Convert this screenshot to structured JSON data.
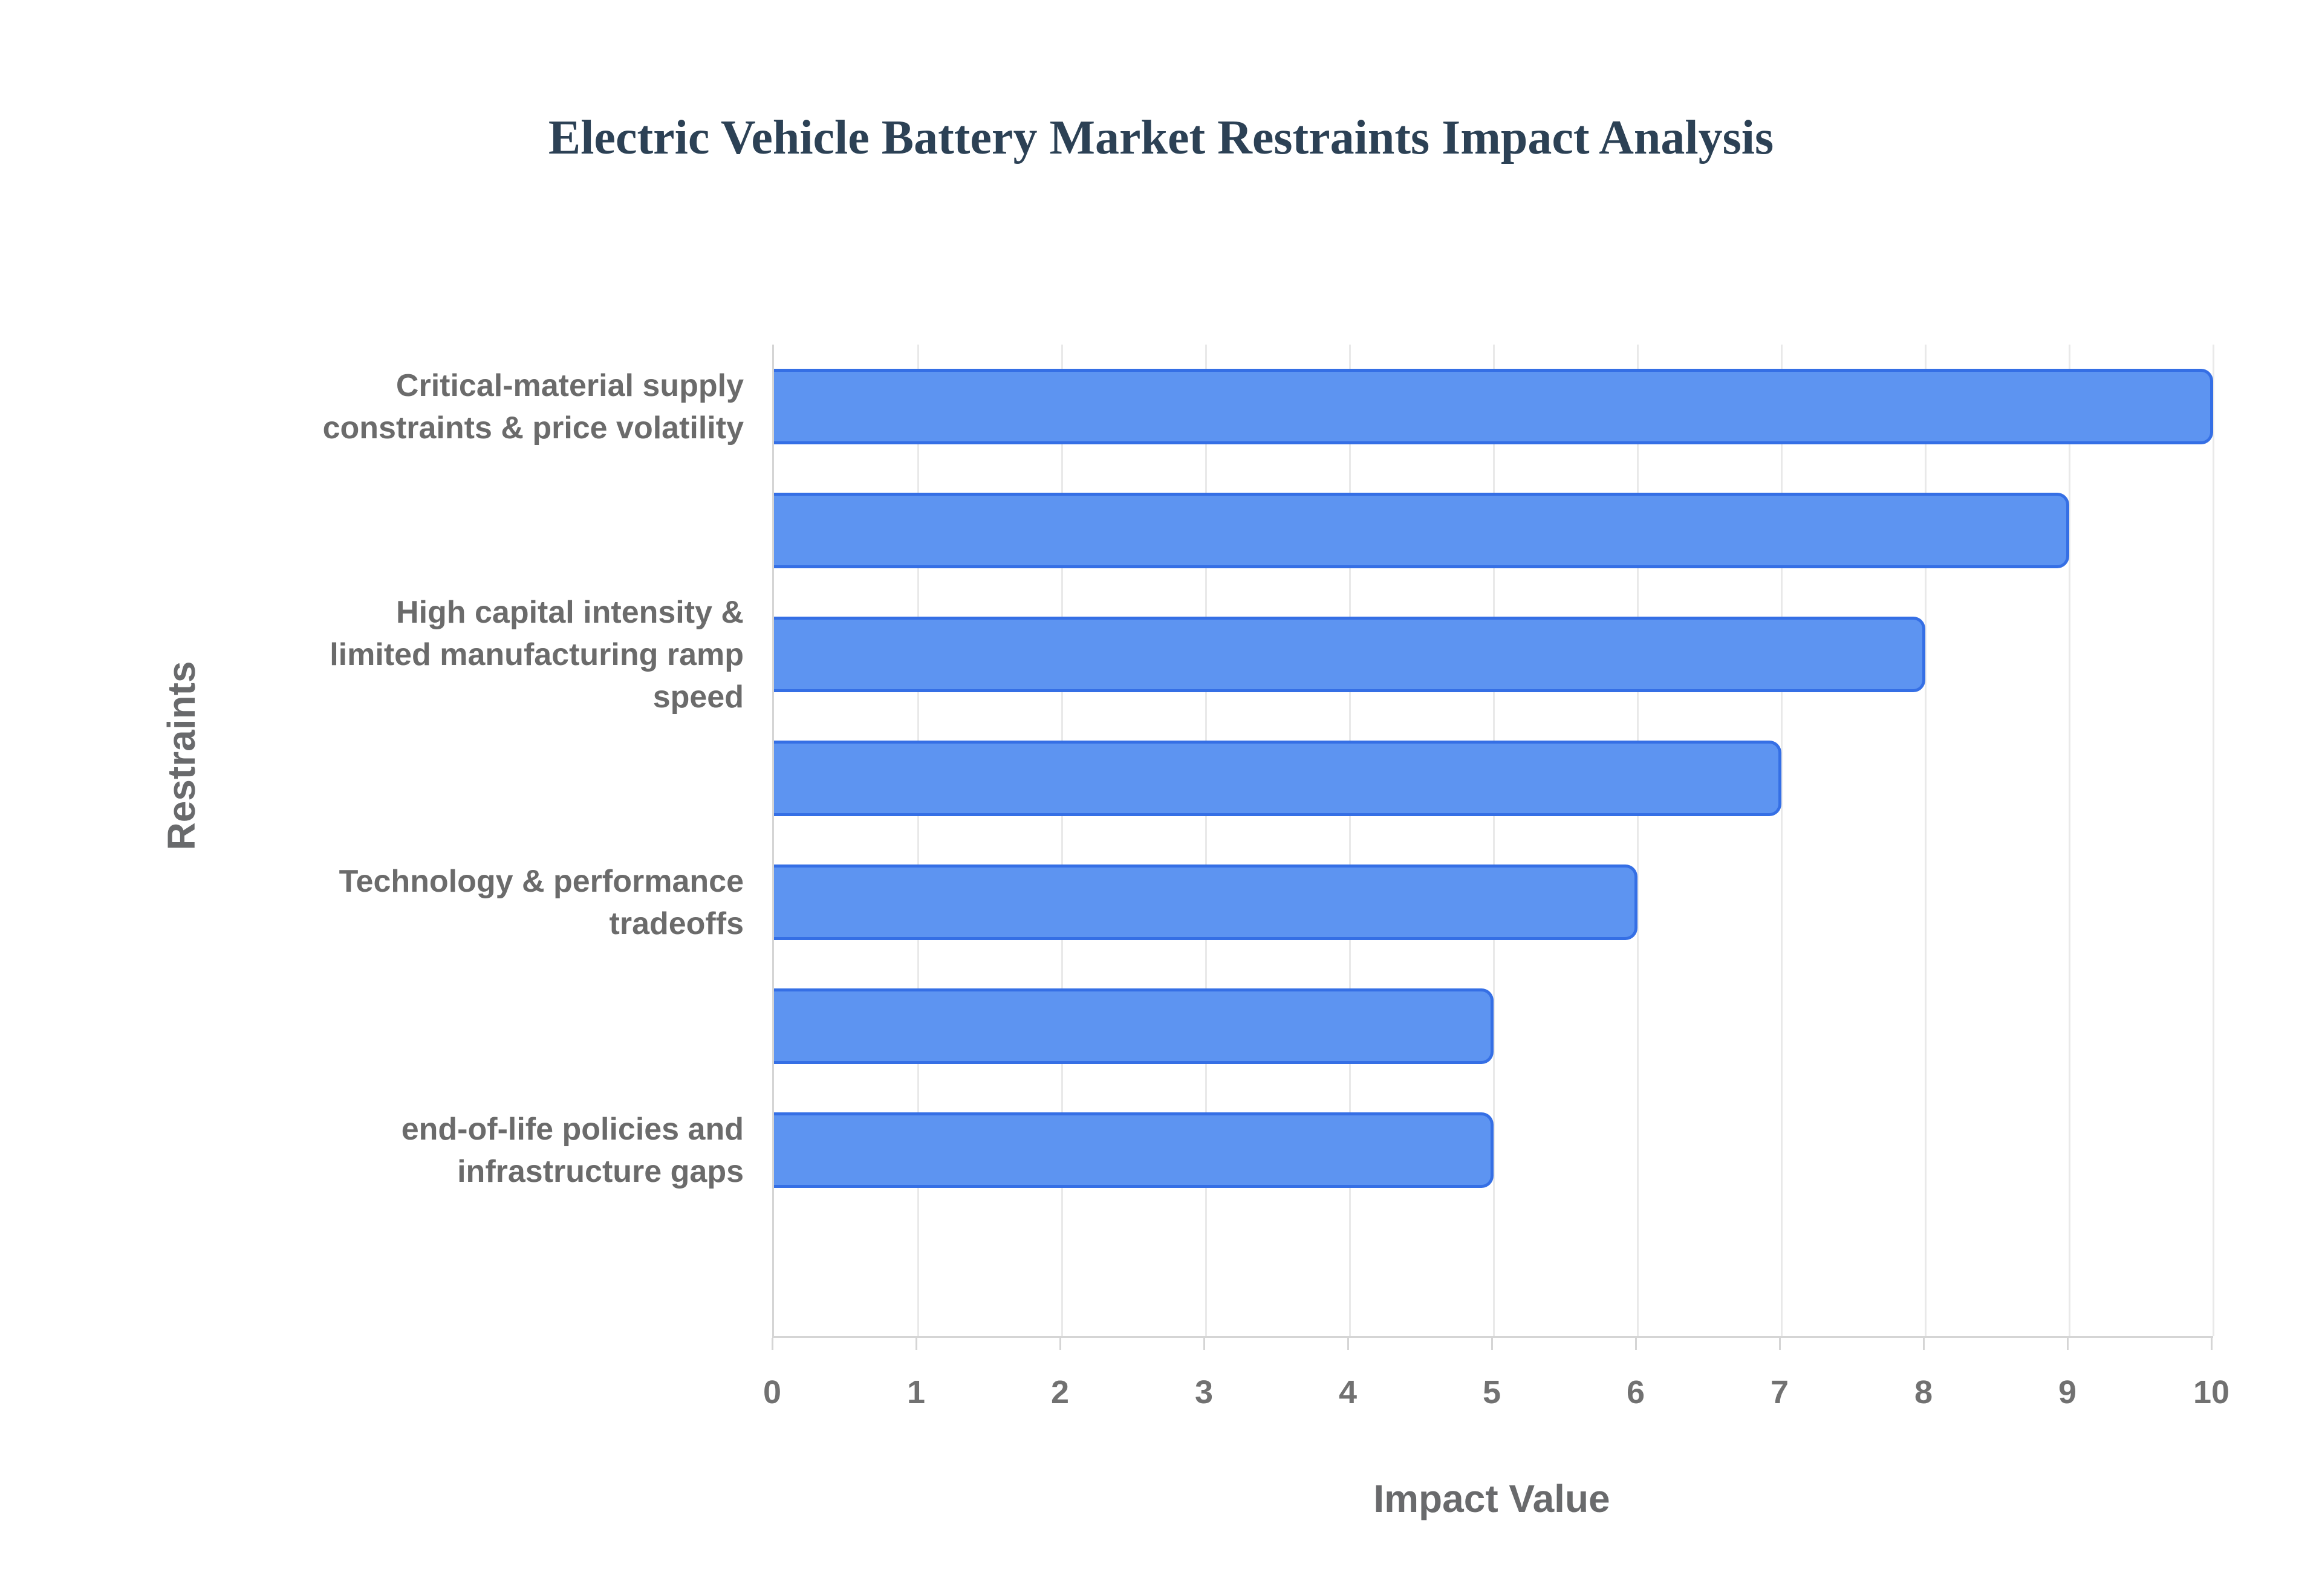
{
  "title": "Electric Vehicle Battery Market Restraints Impact Analysis",
  "chart_data": {
    "type": "bar",
    "orientation": "horizontal",
    "title": "Electric Vehicle Battery Market Restraints Impact Analysis",
    "xlabel": "Impact Value",
    "ylabel": "Restraints",
    "xlim": [
      0,
      10
    ],
    "xticks": [
      0,
      1,
      2,
      3,
      4,
      5,
      6,
      7,
      8,
      9,
      10
    ],
    "grid": "vertical-gridlines-at-integers",
    "legend": "none",
    "categories": [
      "Critical-material supply constraints & price volatility",
      "",
      "High capital intensity & limited manufacturing ramp speed",
      "",
      "Technology & performance tradeoffs",
      "",
      "end-of-life policies and infrastructure gaps"
    ],
    "label_lines": [
      [
        "Critical-material supply",
        "constraints & price volatility"
      ],
      [],
      [
        "High capital intensity &",
        "limited manufacturing ramp",
        "speed"
      ],
      [],
      [
        "Technology & performance",
        "tradeoffs"
      ],
      [],
      [
        "end-of-life policies and",
        "infrastructure gaps"
      ]
    ],
    "values": [
      10,
      9,
      8,
      7,
      6,
      5,
      5
    ],
    "colors": {
      "bar_fill": "#5D94F1",
      "bar_border": "#356FE5",
      "gridline": "#E9E9E9",
      "axis_line": "#D5D5D5",
      "tick_text": "#717171",
      "category_text": "#6B6B6B",
      "axis_title_text": "#696A6C",
      "chart_title": "#2C4155"
    }
  }
}
